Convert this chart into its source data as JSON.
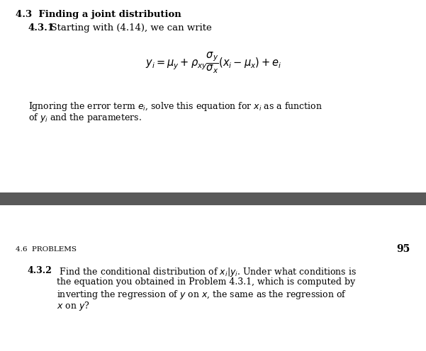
{
  "bg_color": "#ffffff",
  "separator_color": "#595959",
  "fig_width": 6.01,
  "fig_height": 4.96,
  "dpi": 100,
  "top_section": {
    "header": "4.3  Finding a joint distribution",
    "subheader_bold": "4.3.1",
    "subheader_rest": "  Starting with (4.14), we can write",
    "equation": "$y_i = \\mu_y + \\rho_{xy}\\dfrac{\\sigma_y}{\\sigma_x}(x_i - \\mu_x) + e_i$",
    "body_text_line1": "Ignoring the error term $e_i$, solve this equation for $x_i$ as a function",
    "body_text_line2": "of $y_i$ and the parameters."
  },
  "bottom_section": {
    "left_label": "4.6  PROBLEMS",
    "right_label": "95",
    "problem_label": "4.3.2",
    "problem_text_line1": " Find the conditional distribution of $x_i|y_i$. Under what conditions is",
    "problem_text_line2": "the equation you obtained in Problem 4.3.1, which is computed by",
    "problem_text_line3": "inverting the regression of $y$ on $x$, the same as the regression of",
    "problem_text_line4": "$x$ on $y$?"
  },
  "header_fontsize": 9.5,
  "body_fontsize": 9.0,
  "equation_fontsize": 10.5,
  "problems_label_fontsize": 7.5,
  "page_num_fontsize": 10.0
}
